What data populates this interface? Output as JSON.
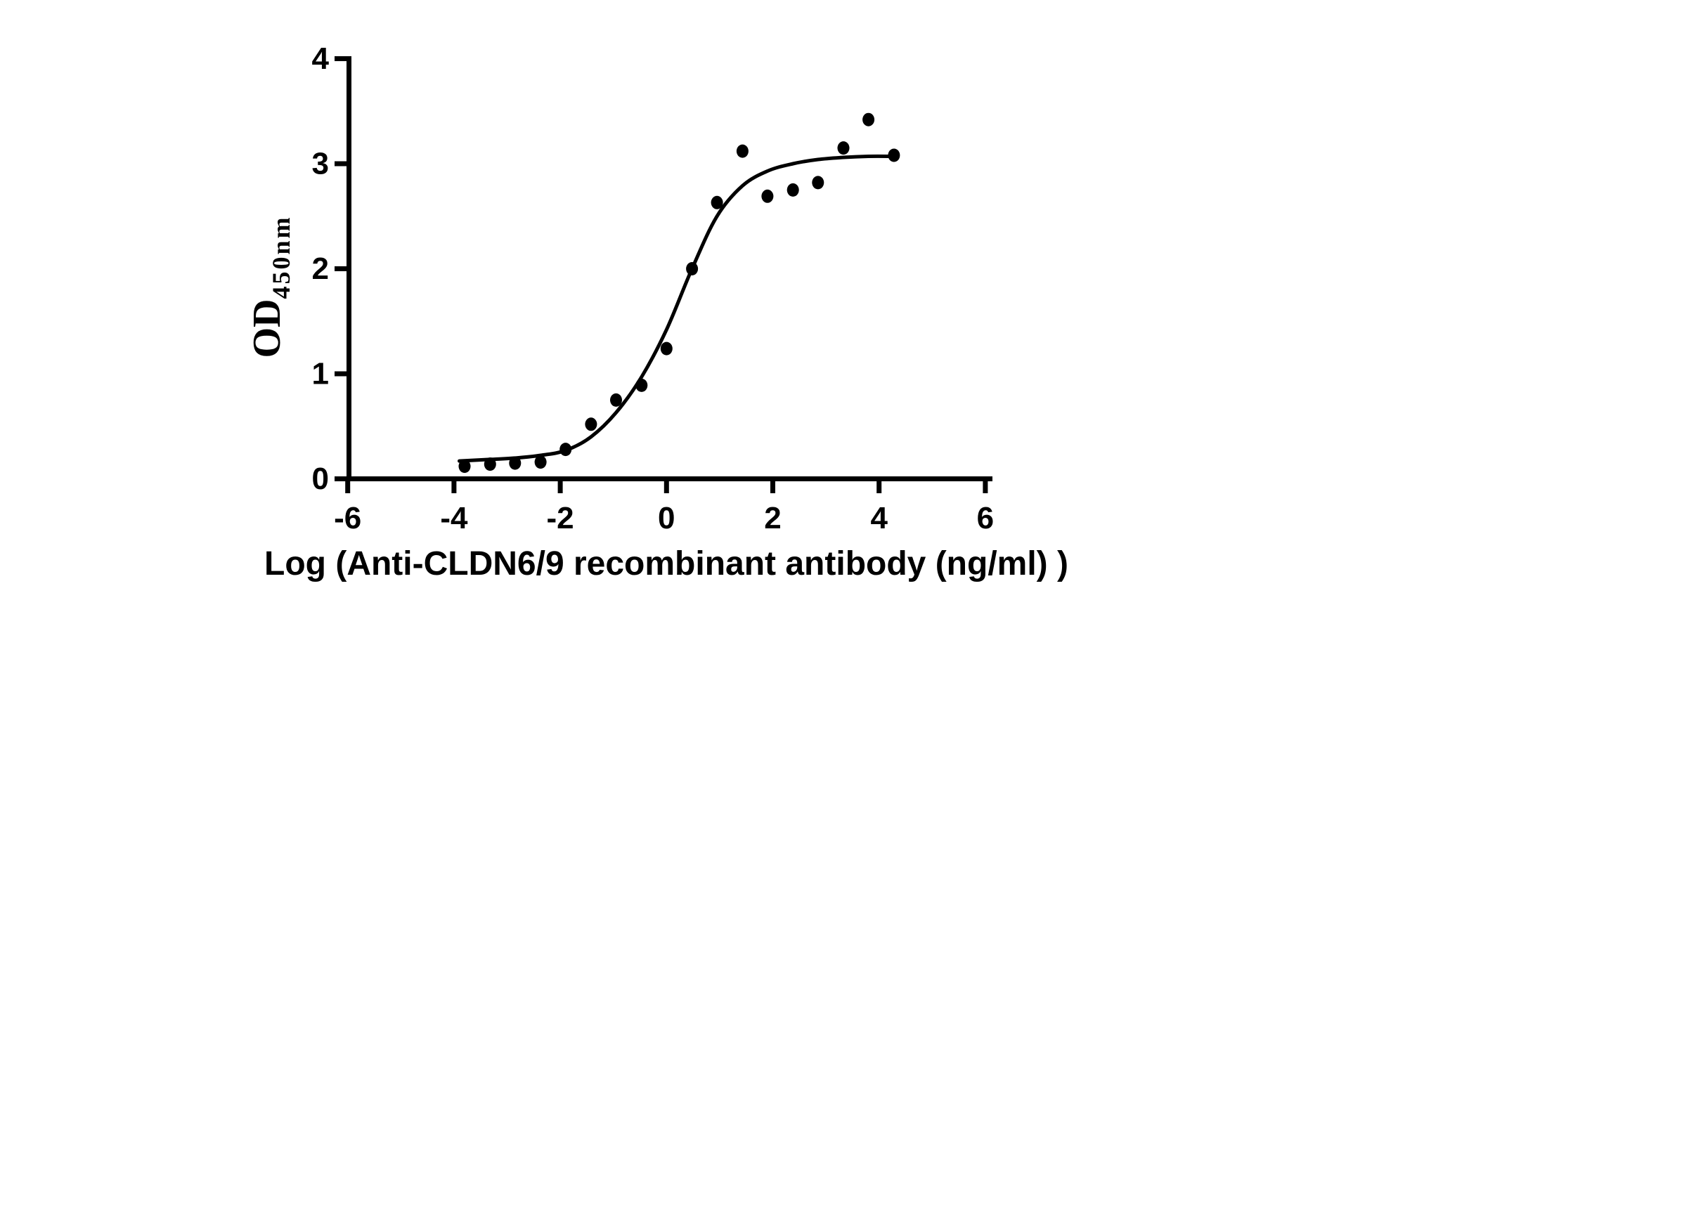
{
  "figure": {
    "background_color": "#ffffff",
    "ink_color": "#000000",
    "description": "ELISA binding activity dose-response curve, black scatter points with sigmoidal fit on white background"
  },
  "chart_data": {
    "type": "scatter",
    "title": "",
    "xlabel": "Log (Anti-CLDN6/9 recombinant antibody (ng/ml) )",
    "ylabel": "OD450nm",
    "ylabel_main": "OD",
    "ylabel_sub": "450nm",
    "xlim": [
      -6.1,
      6.2
    ],
    "ylim": [
      0,
      4
    ],
    "x_ticks": [
      -6,
      -4,
      -2,
      0,
      2,
      4,
      6
    ],
    "y_ticks": [
      0,
      1,
      2,
      3,
      4
    ],
    "grid": false,
    "legend_position": "none",
    "marker": "filled-circle",
    "marker_color": "#000000",
    "line_color": "#000000",
    "series": [
      {
        "name": "OD450 vs log antibody concentration",
        "x": [
          -3.8,
          -3.32,
          -2.85,
          -2.37,
          -1.9,
          -1.42,
          -0.95,
          -0.47,
          0.0,
          0.48,
          0.95,
          1.43,
          1.9,
          2.38,
          2.85,
          3.33,
          3.8,
          4.28
        ],
        "y": [
          0.12,
          0.14,
          0.15,
          0.16,
          0.28,
          0.52,
          0.75,
          0.89,
          1.24,
          2.0,
          2.63,
          3.12,
          2.69,
          2.75,
          2.82,
          3.15,
          3.42,
          3.08
        ]
      }
    ],
    "fit_curve": {
      "description": "four-parameter logistic (sigmoidal) fit drawn from first to last concentration",
      "points": [
        [
          -3.9,
          0.17
        ],
        [
          -3.3,
          0.185
        ],
        [
          -2.8,
          0.2
        ],
        [
          -2.35,
          0.225
        ],
        [
          -1.9,
          0.27
        ],
        [
          -1.42,
          0.4
        ],
        [
          -0.95,
          0.63
        ],
        [
          -0.47,
          0.97
        ],
        [
          0.0,
          1.42
        ],
        [
          0.48,
          2.0
        ],
        [
          0.95,
          2.5
        ],
        [
          1.43,
          2.79
        ],
        [
          1.9,
          2.93
        ],
        [
          2.38,
          3.0
        ],
        [
          2.85,
          3.04
        ],
        [
          3.33,
          3.06
        ],
        [
          3.8,
          3.07
        ],
        [
          4.28,
          3.07
        ]
      ]
    }
  }
}
